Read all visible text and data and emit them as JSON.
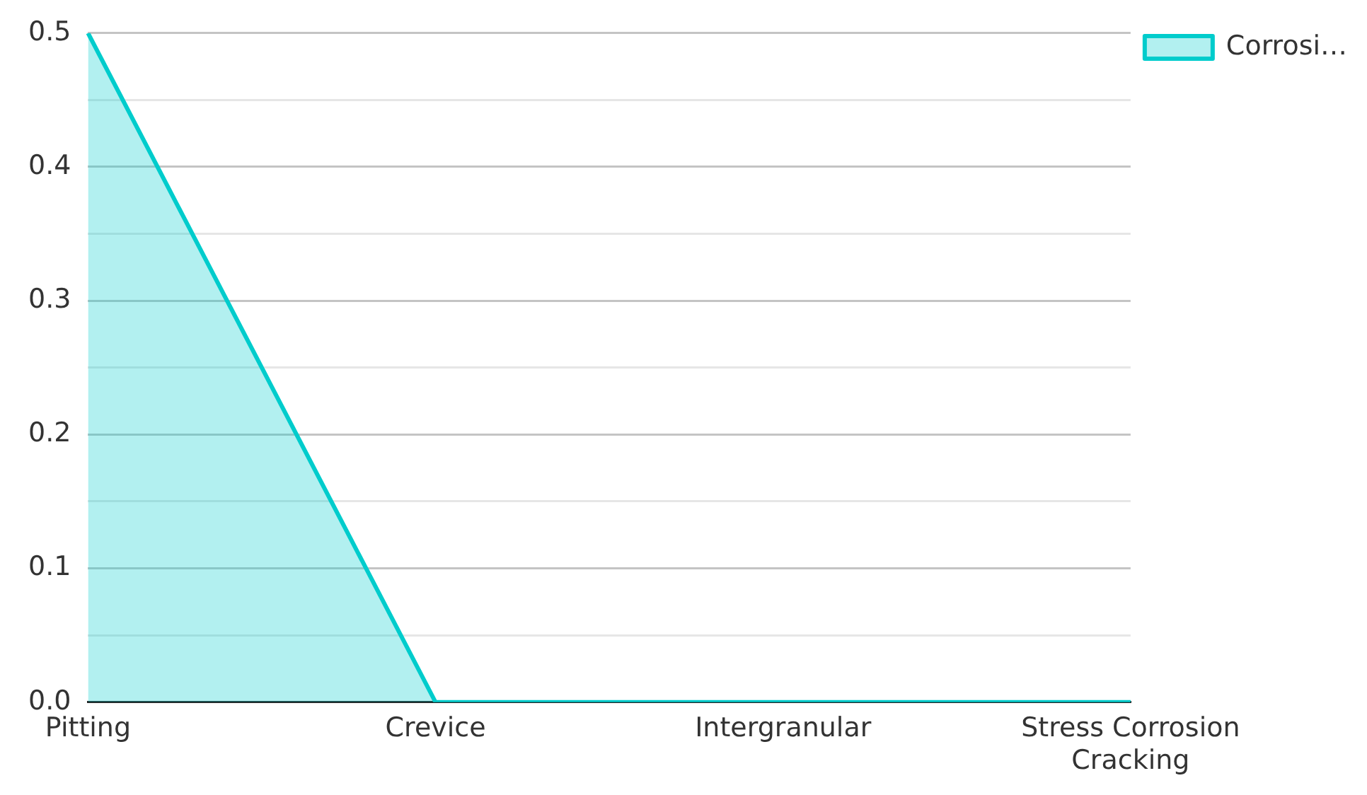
{
  "chart_data": {
    "type": "area",
    "categories": [
      "Pitting",
      "Crevice",
      "Intergranular",
      "Stress Corrosion Cracking"
    ],
    "series": [
      {
        "name": "Corrosi…",
        "color": "#00cccc",
        "values": [
          0.5,
          0,
          0,
          0
        ]
      }
    ],
    "ylim": [
      0,
      0.5
    ],
    "yticks": [
      {
        "value": 0,
        "label": "0.0"
      },
      {
        "value": 0.05,
        "label": null
      },
      0.1,
      {
        "value": 0.15,
        "label": null
      },
      0.2,
      {
        "value": 0.25,
        "label": null
      },
      0.3,
      {
        "value": 0.35,
        "label": null
      },
      0.4,
      {
        "value": 0.45,
        "label": null
      },
      0.5
    ],
    "grid": "y",
    "legend": "top right"
  }
}
